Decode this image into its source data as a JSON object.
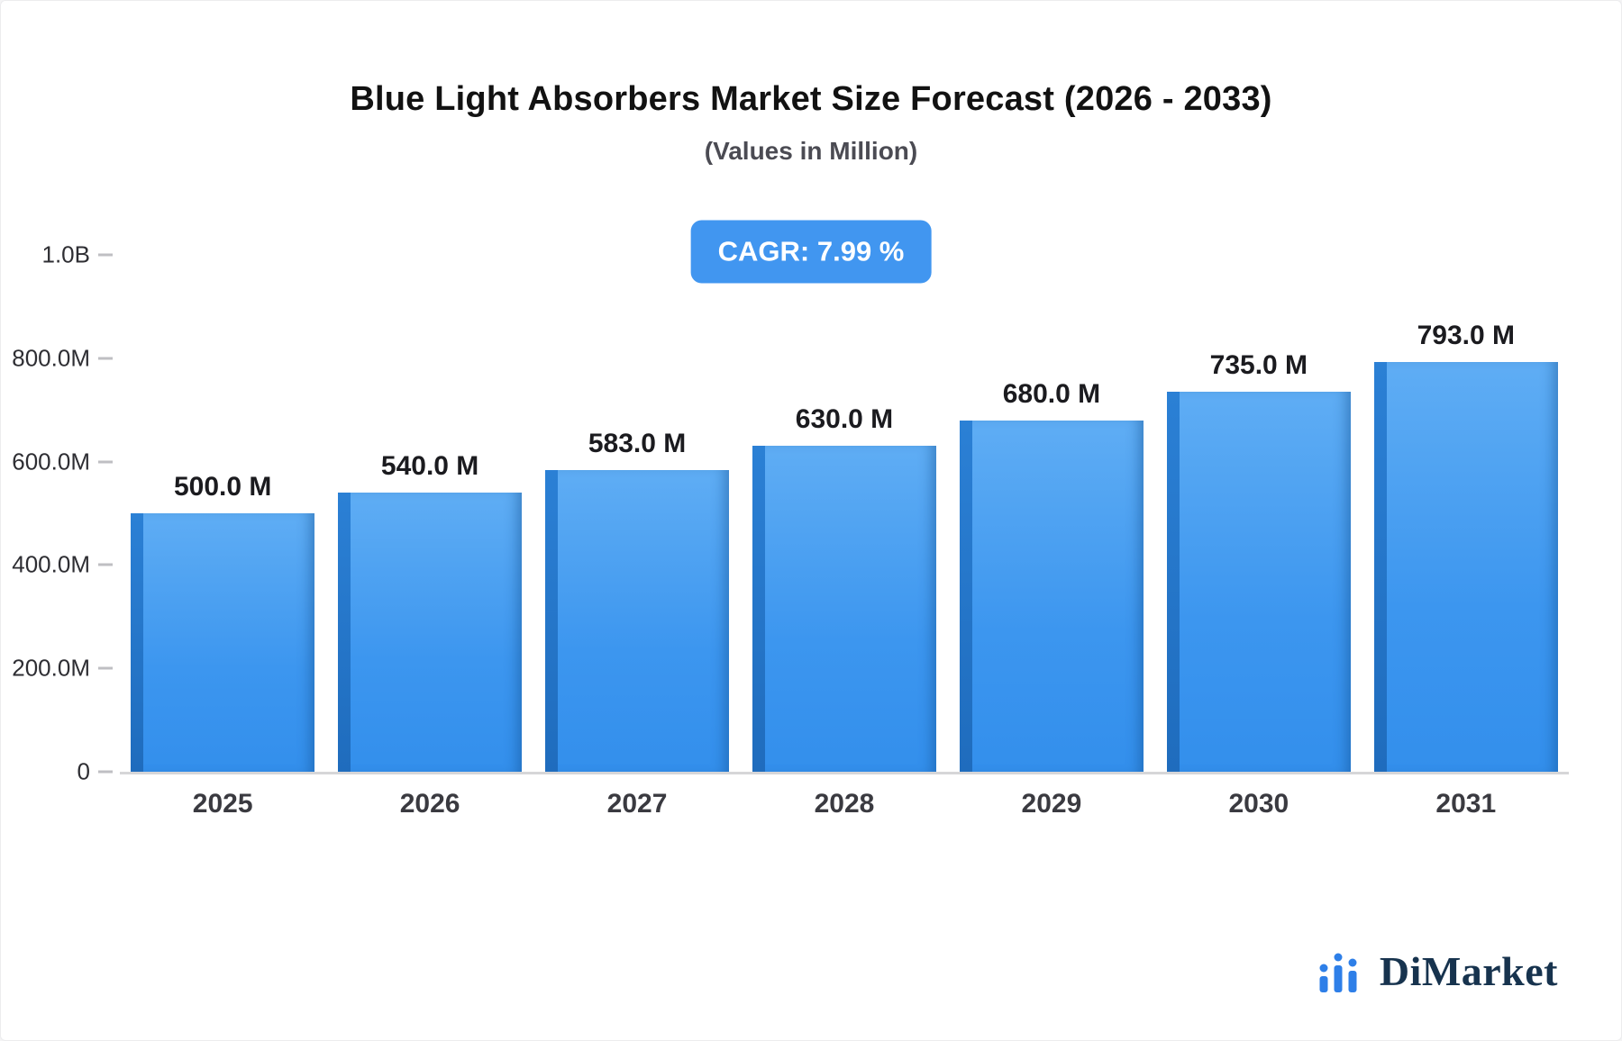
{
  "chart_data": {
    "type": "bar",
    "title": "Blue Light Absorbers Market Size Forecast (2026 - 2033)",
    "subtitle": "(Values in Million)",
    "badge": "CAGR: 7.99 %",
    "categories": [
      "2025",
      "2026",
      "2027",
      "2028",
      "2029",
      "2030",
      "2031"
    ],
    "values": [
      500,
      540,
      583,
      630,
      680,
      735,
      793
    ],
    "value_labels": [
      "500.0 M",
      "540.0 M",
      "583.0 M",
      "630.0 M",
      "680.0 M",
      "735.0 M",
      "793.0 M"
    ],
    "ylim": [
      0,
      1000
    ],
    "yticks": [
      {
        "value": 0,
        "label": "0"
      },
      {
        "value": 200,
        "label": "200.0M"
      },
      {
        "value": 400,
        "label": "400.0M"
      },
      {
        "value": 600,
        "label": "600.0M"
      },
      {
        "value": 800,
        "label": "800.0M"
      },
      {
        "value": 1000,
        "label": "1.0B"
      }
    ],
    "grid": false,
    "legend": false
  },
  "logo": {
    "text": "DiMarket"
  },
  "colors": {
    "bar-main": "#3c96ef",
    "bar-side": "#1f6cbd",
    "badge-bg": "#4196f0",
    "logo-color": "#17334e"
  }
}
